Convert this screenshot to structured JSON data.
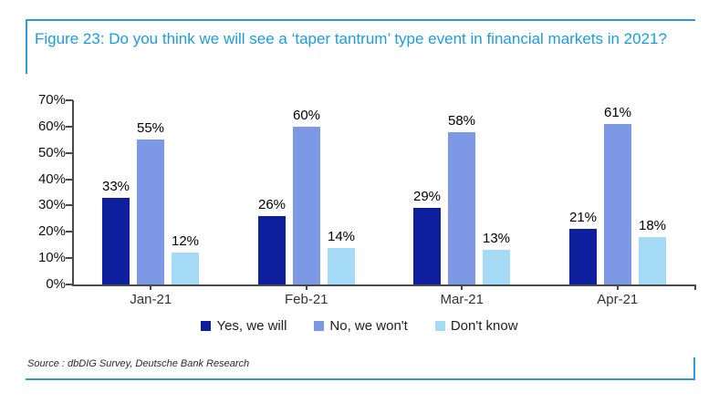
{
  "figure": {
    "title": "Figure 23: Do you think we will see a ‘taper tantrum’ type event in financial markets in 2021?",
    "source": "Source : dbDIG Survey, Deutsche Bank Research",
    "accent_color": "#1e9cd8",
    "frame_color": "#2e9bd8"
  },
  "chart_data": {
    "type": "bar",
    "categories": [
      "Jan-21",
      "Feb-21",
      "Mar-21",
      "Apr-21"
    ],
    "series": [
      {
        "name": "Yes, we will",
        "color": "#0d1f9d",
        "values": [
          33,
          26,
          29,
          21
        ]
      },
      {
        "name": "No, we won't",
        "color": "#7d99e6",
        "values": [
          55,
          60,
          58,
          61
        ]
      },
      {
        "name": "Don't know",
        "color": "#a5dbf7",
        "values": [
          12,
          14,
          13,
          18
        ]
      }
    ],
    "title": "",
    "xlabel": "",
    "ylabel": "",
    "ylim": [
      0,
      70
    ],
    "ytick_step": 10,
    "ytick_labels": [
      "0%",
      "10%",
      "20%",
      "30%",
      "40%",
      "50%",
      "60%",
      "70%"
    ],
    "data_labels": "values shown above each bar with % suffix",
    "grid": false,
    "legend_position": "bottom"
  }
}
